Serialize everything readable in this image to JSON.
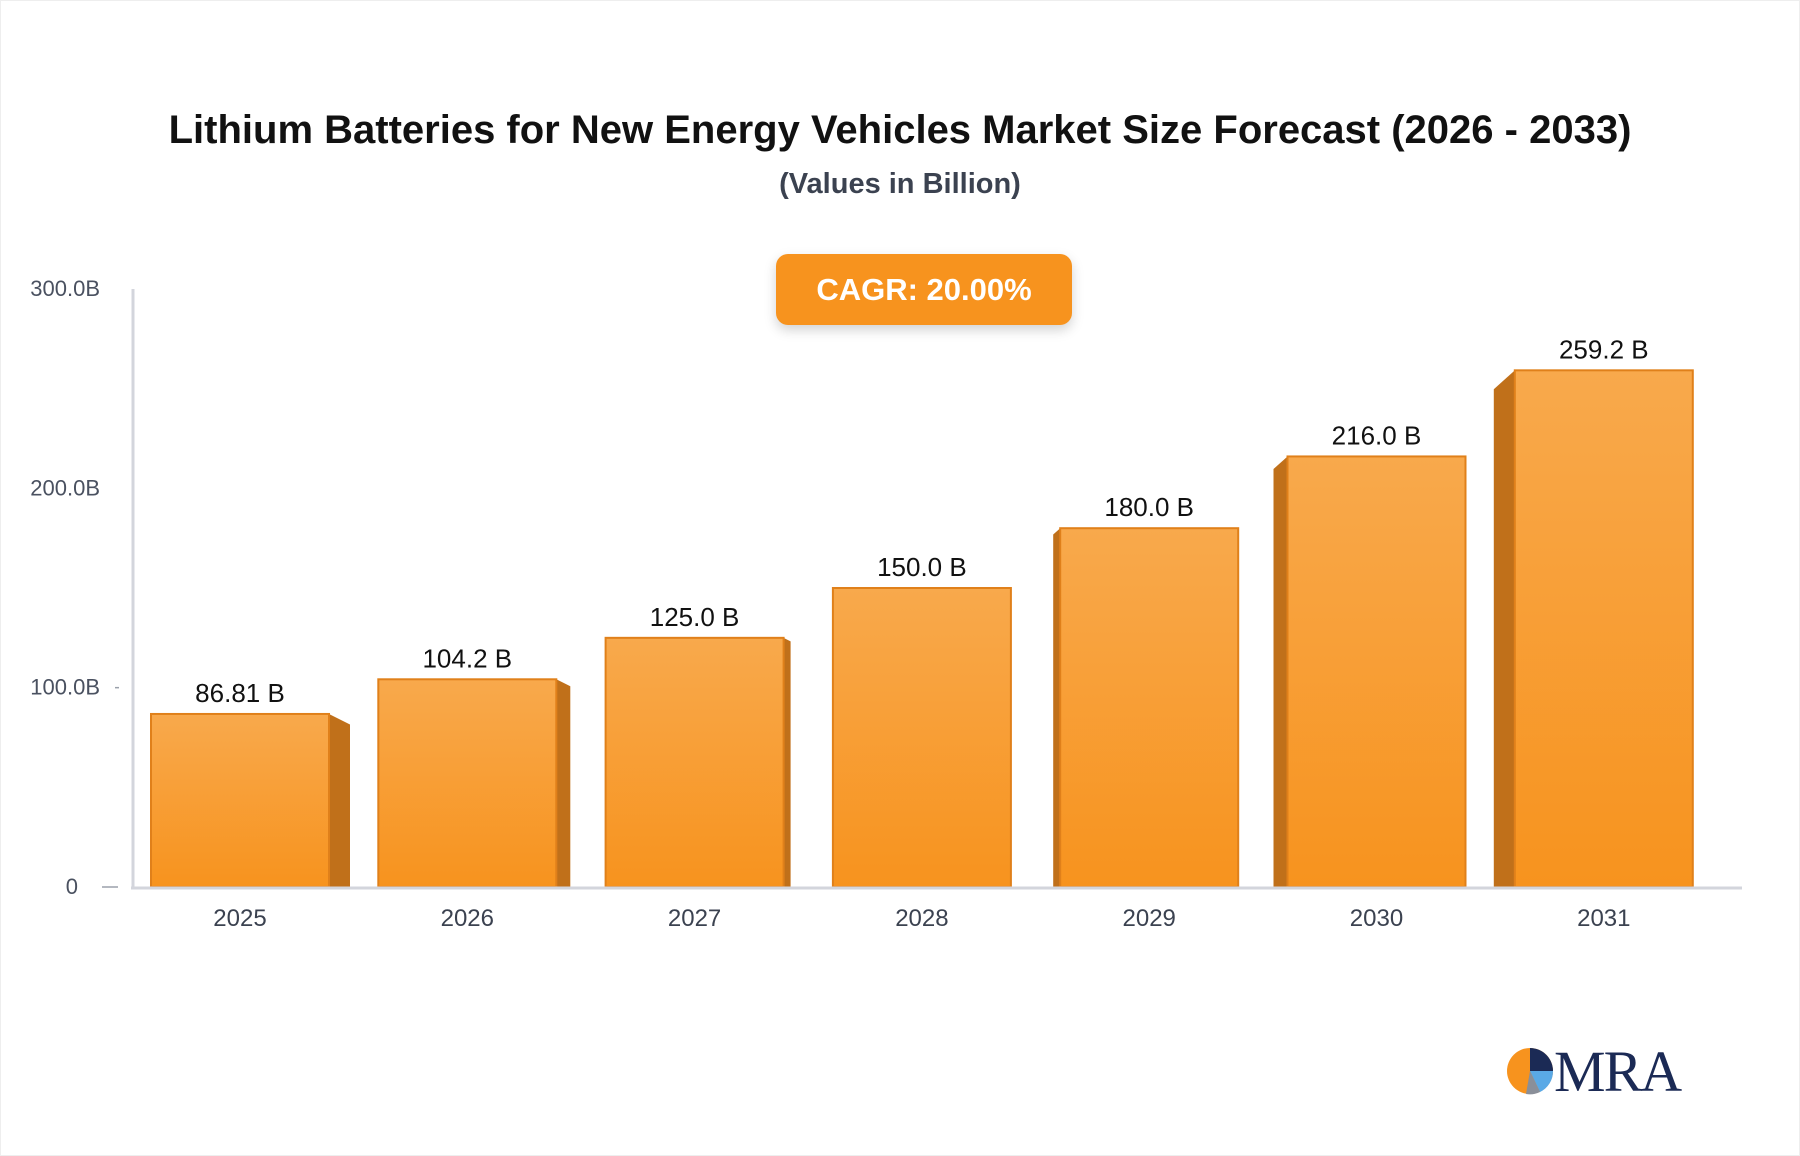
{
  "chart_data": {
    "type": "bar",
    "title": "Lithium Batteries for New Energy Vehicles Market Size Forecast (2026 - 2033)",
    "subtitle": "(Values in Billion)",
    "annotation": "CAGR: 20.00%",
    "categories": [
      "2025",
      "2026",
      "2027",
      "2028",
      "2029",
      "2030",
      "2031"
    ],
    "values": [
      86.81,
      104.2,
      125.0,
      150.0,
      180.0,
      216.0,
      259.2
    ],
    "data_labels": [
      "86.81 B",
      "104.2 B",
      "125.0 B",
      "150.0 B",
      "180.0 B",
      "216.0 B",
      "259.2 B"
    ],
    "ylim": [
      0,
      300
    ],
    "yticks": [
      0,
      100,
      200,
      300
    ],
    "ytick_labels": [
      "0",
      "100.0B",
      "200.0B",
      "300.0B"
    ],
    "xlabel": "",
    "ylabel": "",
    "grid": false,
    "bar_color": "#f7931e",
    "bar_side_color": "#c0701a"
  },
  "logo": {
    "text": "MRA"
  }
}
